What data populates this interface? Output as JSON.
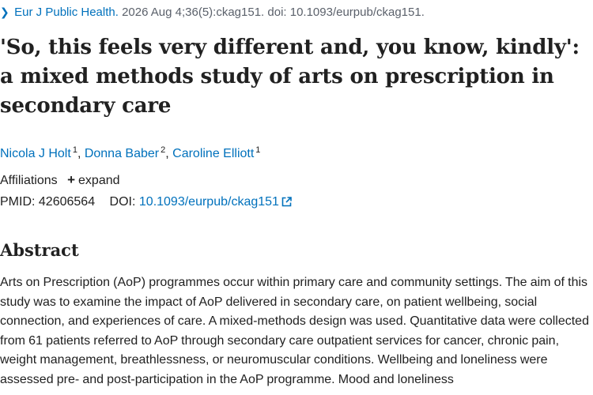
{
  "citation": {
    "journal": "Eur J Public Health.",
    "details": "2026 Aug 4;36(5):ckag151. doi: 10.1093/eurpub/ckag151."
  },
  "article": {
    "title": "'So, this feels very different and, you know, kindly': a mixed methods study of arts on prescription in secondary care",
    "authors": [
      {
        "name": "Nicola J Holt",
        "affiliation": "1"
      },
      {
        "name": "Donna Baber",
        "affiliation": "2"
      },
      {
        "name": "Caroline Elliott",
        "affiliation": "1"
      }
    ],
    "affiliations_label": "Affiliations",
    "expand_label": "expand",
    "pmid_label": "PMID:",
    "pmid": "42606564",
    "doi_label": "DOI:",
    "doi": "10.1093/eurpub/ckag151"
  },
  "abstract": {
    "heading": "Abstract",
    "text": "Arts on Prescription (AoP) programmes occur within primary care and community settings. The aim of this study was to examine the impact of AoP delivered in secondary care, on patient wellbeing, social connection, and experiences of care. A mixed-methods design was used. Quantitative data were collected from 61 patients referred to AoP through secondary care outpatient services for cancer, chronic pain, weight management, breathlessness, or neuromuscular conditions. Wellbeing and loneliness were assessed pre- and post-participation in the AoP programme. Mood and loneliness"
  },
  "icons": {
    "breadcrumb": "chevron-right-icon",
    "expand": "plus-icon",
    "doi_link": "external-link-icon"
  },
  "colors": {
    "link": "#0071bc",
    "text": "#212121",
    "muted": "#5b616b"
  }
}
